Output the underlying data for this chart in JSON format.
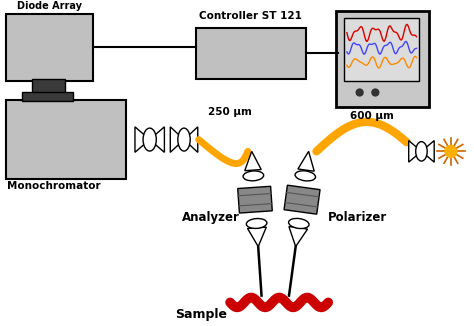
{
  "bg_color": "#ffffff",
  "fig_w": 4.74,
  "fig_h": 3.26,
  "dpi": 100,
  "labels": {
    "diode_array": "Diode Array",
    "monochromator": "Monochromator",
    "controller": "Controller ST 121",
    "fiber_250": "250 μm",
    "fiber_600": "600 μm",
    "analyzer": "Analyzer",
    "polarizer": "Polarizer",
    "sample": "Sample"
  },
  "colors": {
    "box_fill": "#c0c0c0",
    "box_edge": "#000000",
    "dark_fill": "#3a3a3a",
    "fiber": "#FFA500",
    "sample_red": "#cc0000",
    "lens_fill": "#ffffff",
    "lens_edge": "#000000",
    "wp_fill": "#909090",
    "wp_edge": "#000000",
    "monitor_bg": "#c8c8c8",
    "screen_bg": "#dcdcdc",
    "wave_red": "#dd0000",
    "wave_blue": "#4444ff",
    "wave_orange": "#ff8800"
  }
}
